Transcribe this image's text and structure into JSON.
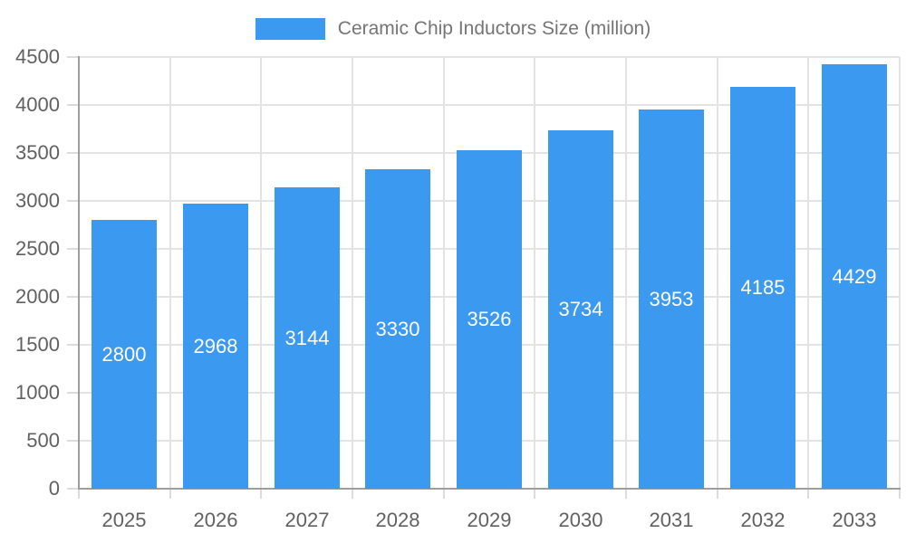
{
  "legend": {
    "label": "Ceramic Chip Inductors Size (million)"
  },
  "chart_data": {
    "type": "bar",
    "title": "Ceramic Chip Inductors Size (million)",
    "categories": [
      "2025",
      "2026",
      "2027",
      "2028",
      "2029",
      "2030",
      "2031",
      "2032",
      "2033"
    ],
    "values": [
      2800,
      2968,
      3144,
      3330,
      3526,
      3734,
      3953,
      4185,
      4429
    ],
    "series": [
      {
        "name": "Ceramic Chip Inductors Size (million)",
        "values": [
          2800,
          2968,
          3144,
          3330,
          3526,
          3734,
          3953,
          4185,
          4429
        ]
      }
    ],
    "xlabel": "",
    "ylabel": "",
    "ylim": [
      0,
      4500
    ],
    "yticks": [
      0,
      500,
      1000,
      1500,
      2000,
      2500,
      3000,
      3500,
      4000,
      4500
    ],
    "grid": true,
    "legend_position": "top-center",
    "value_labels": "inside-center-white",
    "colors": {
      "bar": "#3B99EF",
      "value_label": "#FFFFFF",
      "axis_line": "#9E9E9E",
      "gridline": "#E3E3E3",
      "tick": "#DCDCDC",
      "axis_text": "#616161",
      "legend_text": "#757575",
      "background": "#FFFFFF"
    }
  }
}
